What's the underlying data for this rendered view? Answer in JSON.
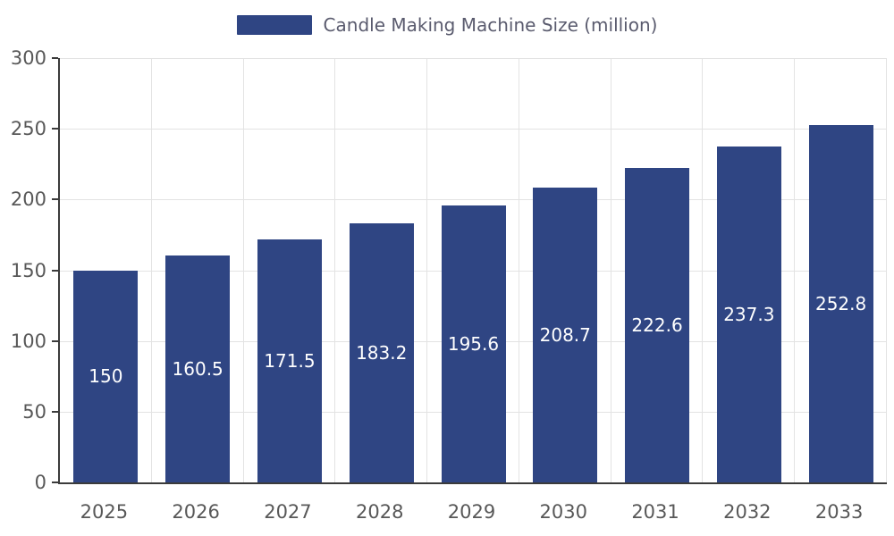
{
  "legend": {
    "label": "Candle Making Machine Size (million)"
  },
  "colors": {
    "bar": "#2f4583",
    "axis": "#3b3b3b",
    "grid": "#e3e3e3",
    "tick_text": "#585858",
    "legend_text": "#5a5b6e",
    "bar_label_text": "#ffffff",
    "background": "#ffffff"
  },
  "chart_data": {
    "type": "bar",
    "categories": [
      "2025",
      "2026",
      "2027",
      "2028",
      "2029",
      "2030",
      "2031",
      "2032",
      "2033"
    ],
    "values": [
      150,
      160.5,
      171.5,
      183.2,
      195.6,
      208.7,
      222.6,
      237.3,
      252.8
    ],
    "value_labels": [
      "150",
      "160.5",
      "171.5",
      "183.2",
      "195.6",
      "208.7",
      "222.6",
      "237.3",
      "252.8"
    ],
    "title": "Candle Making Machine Size (million)",
    "xlabel": "",
    "ylabel": "",
    "ylim": [
      0,
      300
    ],
    "yticks": [
      0,
      50,
      100,
      150,
      200,
      250,
      300
    ],
    "ytick_labels": [
      "0",
      "50",
      "100",
      "150",
      "200",
      "250",
      "300"
    ],
    "grid": true,
    "legend_position": "top",
    "bar_color": "#2f4583",
    "bar_label_position": "inside-center"
  }
}
